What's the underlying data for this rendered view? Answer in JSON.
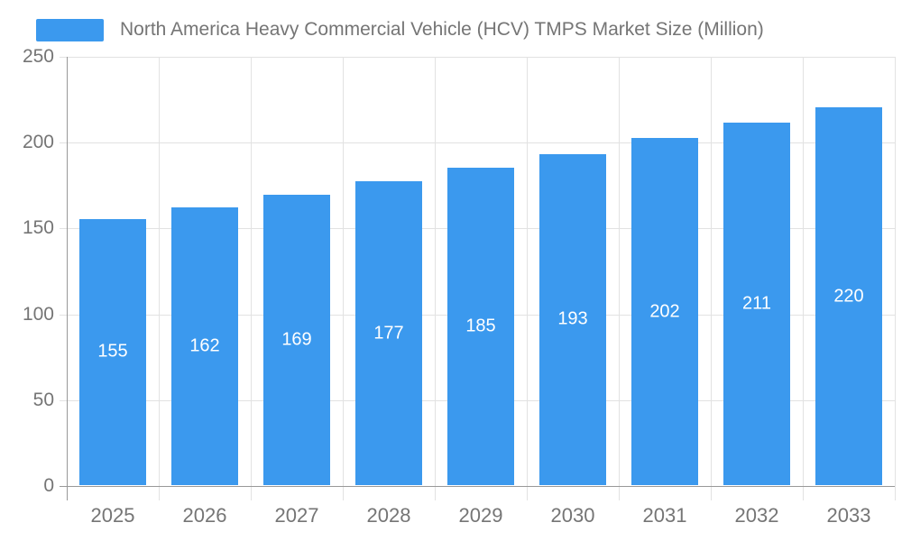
{
  "legend": {
    "title": "North America Heavy Commercial Vehicle (HCV) TMPS Market Size (Million)",
    "swatch_icon": "legend-swatch-icon"
  },
  "chart_data": {
    "type": "bar",
    "title": "North America Heavy Commercial Vehicle (HCV) TMPS Market Size (Million)",
    "categories": [
      "2025",
      "2026",
      "2027",
      "2028",
      "2029",
      "2030",
      "2031",
      "2032",
      "2033"
    ],
    "values": [
      155,
      162,
      169,
      177,
      185,
      193,
      202,
      211,
      220
    ],
    "xlabel": "",
    "ylabel": "",
    "ylim": [
      0,
      250
    ],
    "yticks": [
      0,
      50,
      100,
      150,
      200,
      250
    ],
    "grid": true,
    "legend_position": "top-left",
    "colors": {
      "bar": "#3B99EE",
      "value_label": "#ffffff",
      "axis_text": "#757575",
      "grid_line": "#e2e2e2",
      "axis_line": "#999999"
    }
  }
}
